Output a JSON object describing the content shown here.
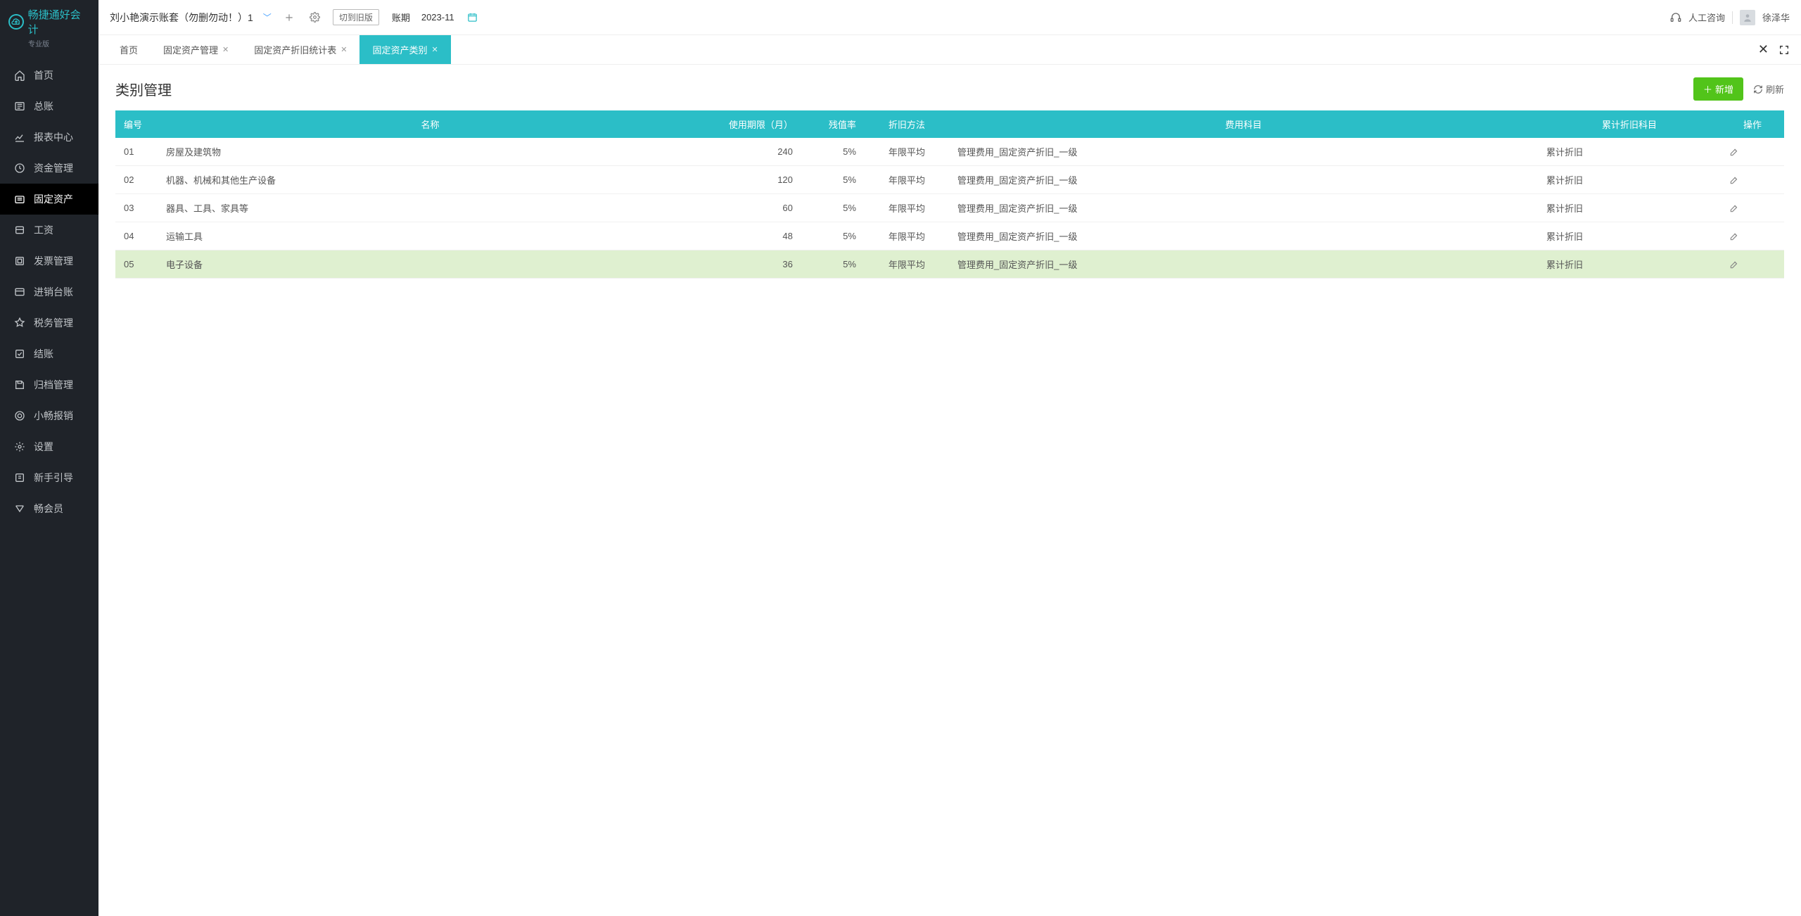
{
  "brand": {
    "name": "畅捷通好会计",
    "edition": "专业版"
  },
  "sidebar": {
    "items": [
      {
        "label": "首页"
      },
      {
        "label": "总账"
      },
      {
        "label": "报表中心"
      },
      {
        "label": "资金管理"
      },
      {
        "label": "固定资产"
      },
      {
        "label": "工资"
      },
      {
        "label": "发票管理"
      },
      {
        "label": "进销台账"
      },
      {
        "label": "税务管理"
      },
      {
        "label": "结账"
      },
      {
        "label": "归档管理"
      },
      {
        "label": "小畅报销"
      },
      {
        "label": "设置"
      },
      {
        "label": "新手引导"
      },
      {
        "label": "畅会员"
      }
    ],
    "active_index": 4
  },
  "topbar": {
    "account": "刘小艳演示账套（勿删勿动！）1",
    "switch_old": "切到旧版",
    "period_label": "账期",
    "period_value": "2023-11",
    "support_label": "人工咨询",
    "username": "徐泽华"
  },
  "tabs": {
    "items": [
      {
        "label": "首页",
        "closeable": false
      },
      {
        "label": "固定资产管理",
        "closeable": true
      },
      {
        "label": "固定资产折旧统计表",
        "closeable": true
      },
      {
        "label": "固定资产类别",
        "closeable": true
      }
    ],
    "active_index": 3
  },
  "page": {
    "title": "类别管理",
    "new_button": "新增",
    "refresh_label": "刷新"
  },
  "table": {
    "columns": [
      "编号",
      "名称",
      "使用期限（月）",
      "残值率",
      "折旧方法",
      "费用科目",
      "累计折旧科目",
      "操作"
    ],
    "rows": [
      {
        "id": "01",
        "name": "房屋及建筑物",
        "period": "240",
        "rate": "5%",
        "method": "年限平均",
        "expense": "管理费用_固定资产折旧_一级",
        "depr": "累计折旧",
        "hl": false
      },
      {
        "id": "02",
        "name": "机器、机械和其他生产设备",
        "period": "120",
        "rate": "5%",
        "method": "年限平均",
        "expense": "管理费用_固定资产折旧_一级",
        "depr": "累计折旧",
        "hl": false
      },
      {
        "id": "03",
        "name": "器具、工具、家具等",
        "period": "60",
        "rate": "5%",
        "method": "年限平均",
        "expense": "管理费用_固定资产折旧_一级",
        "depr": "累计折旧",
        "hl": false
      },
      {
        "id": "04",
        "name": "运输工具",
        "period": "48",
        "rate": "5%",
        "method": "年限平均",
        "expense": "管理费用_固定资产折旧_一级",
        "depr": "累计折旧",
        "hl": false
      },
      {
        "id": "05",
        "name": "电子设备",
        "period": "36",
        "rate": "5%",
        "method": "年限平均",
        "expense": "管理费用_固定资产折旧_一级",
        "depr": "累计折旧",
        "hl": true
      }
    ]
  },
  "colors": {
    "teal": "#2bbec7",
    "sidebar_bg": "#1f2329",
    "highlight_row": "#dff0d0",
    "primary_btn": "#52c41a"
  }
}
